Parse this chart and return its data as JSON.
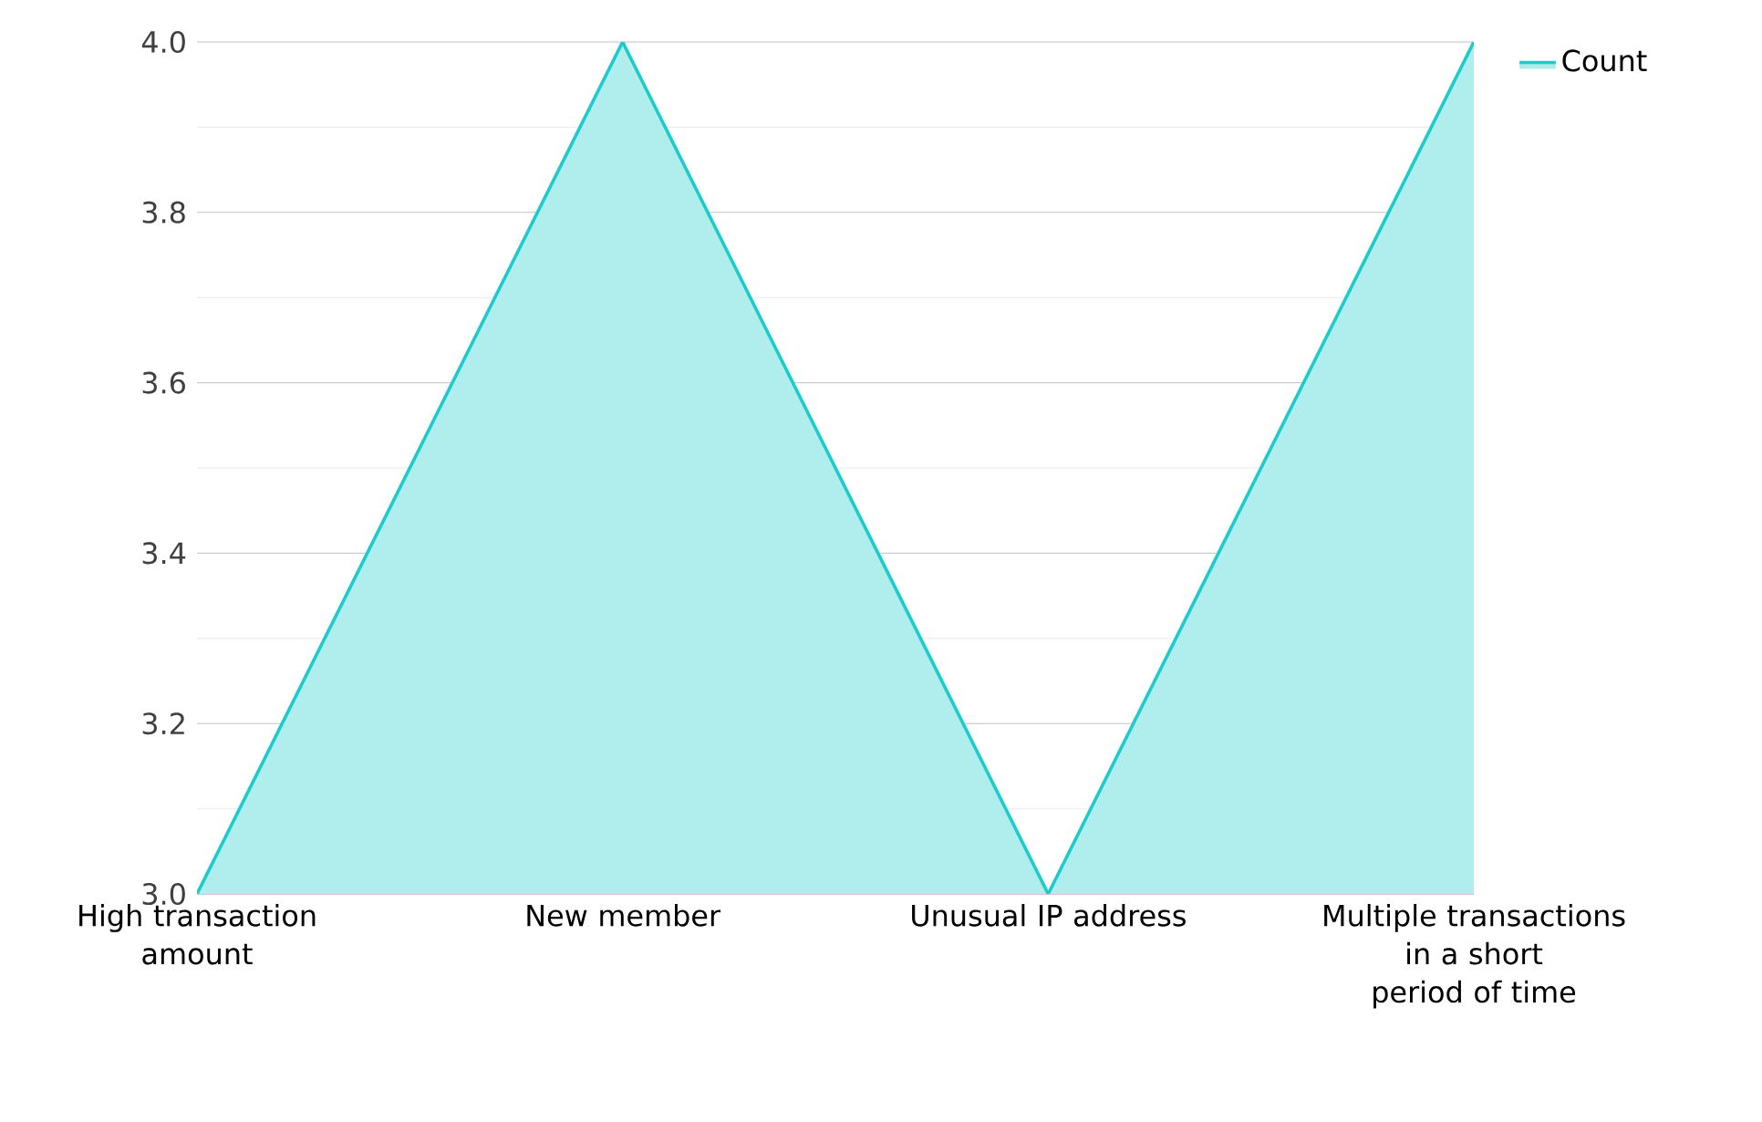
{
  "chart_data": {
    "type": "area",
    "categories": [
      "High transaction amount",
      "New member",
      "Unusual IP address",
      "Multiple transactions in a short period of time"
    ],
    "series": [
      {
        "name": "Count",
        "color": "#1ccbcc",
        "values": [
          3,
          4,
          3,
          4
        ]
      }
    ],
    "ylim": [
      3,
      4
    ],
    "yticks": [
      {
        "value": 3,
        "label": "3.0"
      },
      3.2,
      3.4,
      3.6,
      3.8,
      {
        "value": 4,
        "label": "4.0"
      }
    ],
    "grid": "y",
    "legend": "top right"
  }
}
